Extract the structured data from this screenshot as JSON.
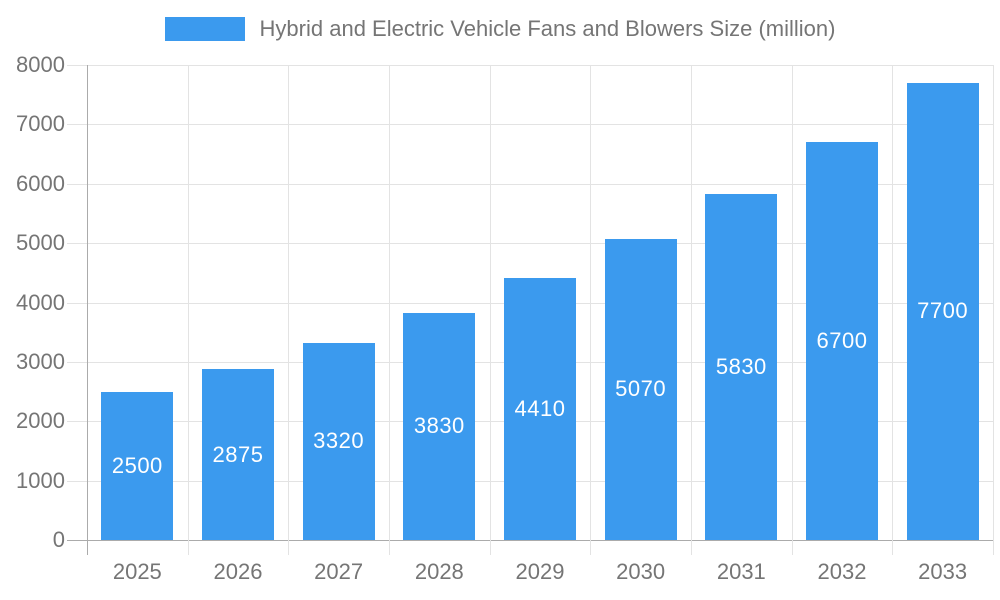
{
  "legend": {
    "label": "Hybrid and Electric Vehicle Fans and Blowers Size (million)"
  },
  "colors": {
    "bar": "#3B9AEE",
    "axis": "#ababab",
    "grid": "#e3e3e3",
    "axis_text": "#757575",
    "value_text": "#ffffff"
  },
  "chart_data": {
    "type": "bar",
    "title": "Hybrid and Electric Vehicle Fans and Blowers Size (million)",
    "categories": [
      "2025",
      "2026",
      "2027",
      "2028",
      "2029",
      "2030",
      "2031",
      "2032",
      "2033"
    ],
    "values": [
      2500,
      2875,
      3320,
      3830,
      4410,
      5070,
      5830,
      6700,
      7700
    ],
    "xlabel": "",
    "ylabel": "",
    "ylim": [
      0,
      8000
    ],
    "ytick_step": 1000,
    "yticks": [
      0,
      1000,
      2000,
      3000,
      4000,
      5000,
      6000,
      7000,
      8000
    ],
    "grid": true,
    "value_labels": "inside-center",
    "legend_position": "top"
  }
}
